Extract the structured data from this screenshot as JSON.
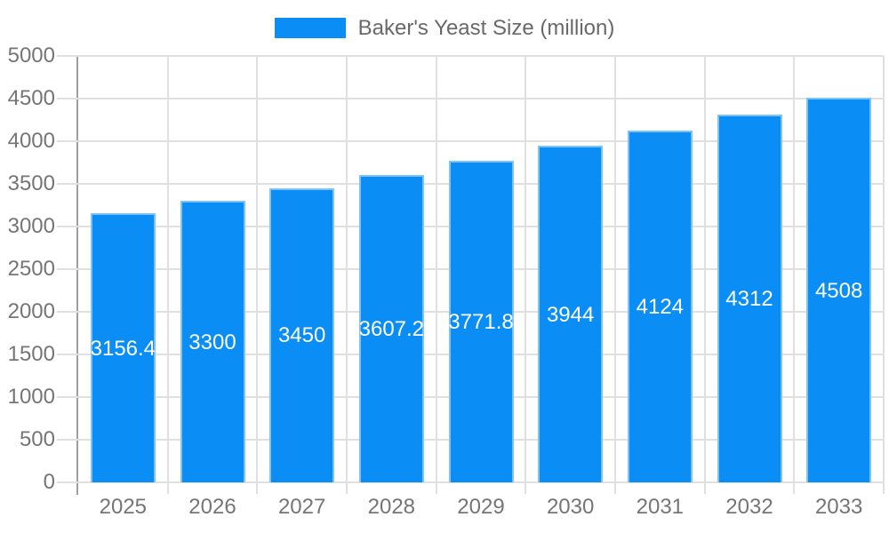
{
  "chart": {
    "legend": {
      "label": "Baker's Yeast Size (million)"
    },
    "colors": {
      "background": "#FFFFFF",
      "bar": "#0A8DF5",
      "bar_border": "#7EC2F8",
      "grid": "#E0E0E0",
      "axis": "#9E9E9E",
      "axis_label": "#757575",
      "legend_text": "#696969",
      "bar_label": "#FFFFFF"
    }
  },
  "chart_data": {
    "type": "bar",
    "title": "Baker's Yeast Size (million)",
    "categories": [
      "2025",
      "2026",
      "2027",
      "2028",
      "2029",
      "2030",
      "2031",
      "2032",
      "2033"
    ],
    "values": [
      3156.4,
      3300,
      3450,
      3607.2,
      3771.8,
      3944,
      4124,
      4312,
      4508
    ],
    "series": [
      {
        "name": "Baker's Yeast Size (million)",
        "values": [
          3156.4,
          3300,
          3450,
          3607.2,
          3771.8,
          3944,
          4124,
          4312,
          4508
        ]
      }
    ],
    "xlabel": "",
    "ylabel": "",
    "ylim": [
      0,
      5000
    ],
    "ytick_step": 500,
    "ytick_labels": [
      "0",
      "500",
      "1000",
      "1500",
      "2000",
      "2500",
      "3000",
      "3500",
      "4000",
      "4500",
      "5000"
    ],
    "grid": true,
    "legend_position": "top-center",
    "value_labels": "inside-center"
  }
}
